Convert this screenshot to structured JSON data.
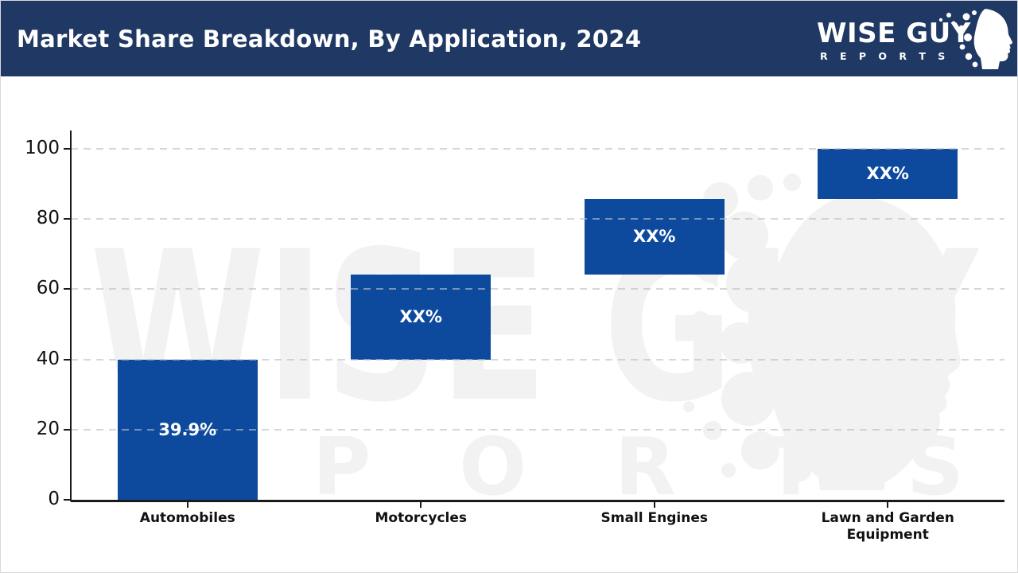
{
  "header": {
    "title": "Market Share Breakdown, By Application, 2024",
    "bg_color": "#1F3864",
    "logo": {
      "line1": "WISE GUY",
      "line2": "R E P O R T S"
    }
  },
  "watermark": {
    "line1": "WISE GUY",
    "line2": "P O R T S"
  },
  "chart_data": {
    "type": "bar",
    "subtype": "floating-segment-breakdown",
    "title": "Market Share Breakdown, By Application, 2024",
    "categories": [
      "Automobiles",
      "Motorcycles",
      "Small Engines",
      "Lawn and Garden Equipment"
    ],
    "series": [
      {
        "name": "Market Share (%)",
        "segments": [
          [
            0,
            39.9
          ],
          [
            39.9,
            64.2
          ],
          [
            64.2,
            85.8
          ],
          [
            85.8,
            100
          ]
        ]
      }
    ],
    "bar_labels": [
      "39.9%",
      "XX%",
      "XX%",
      "XX%"
    ],
    "yticks": [
      0,
      20,
      40,
      60,
      80,
      100
    ],
    "ylim": [
      0,
      105
    ],
    "xlabel": "",
    "ylabel": "",
    "grid": "horizontal-dashed",
    "legend": "none",
    "colors": {
      "bar": "#0D4A9E",
      "bar_label": "#FFFFFF",
      "grid": "#D9D9D9",
      "axis": "#1A1A1A",
      "watermark": "#F2F2F2"
    }
  }
}
